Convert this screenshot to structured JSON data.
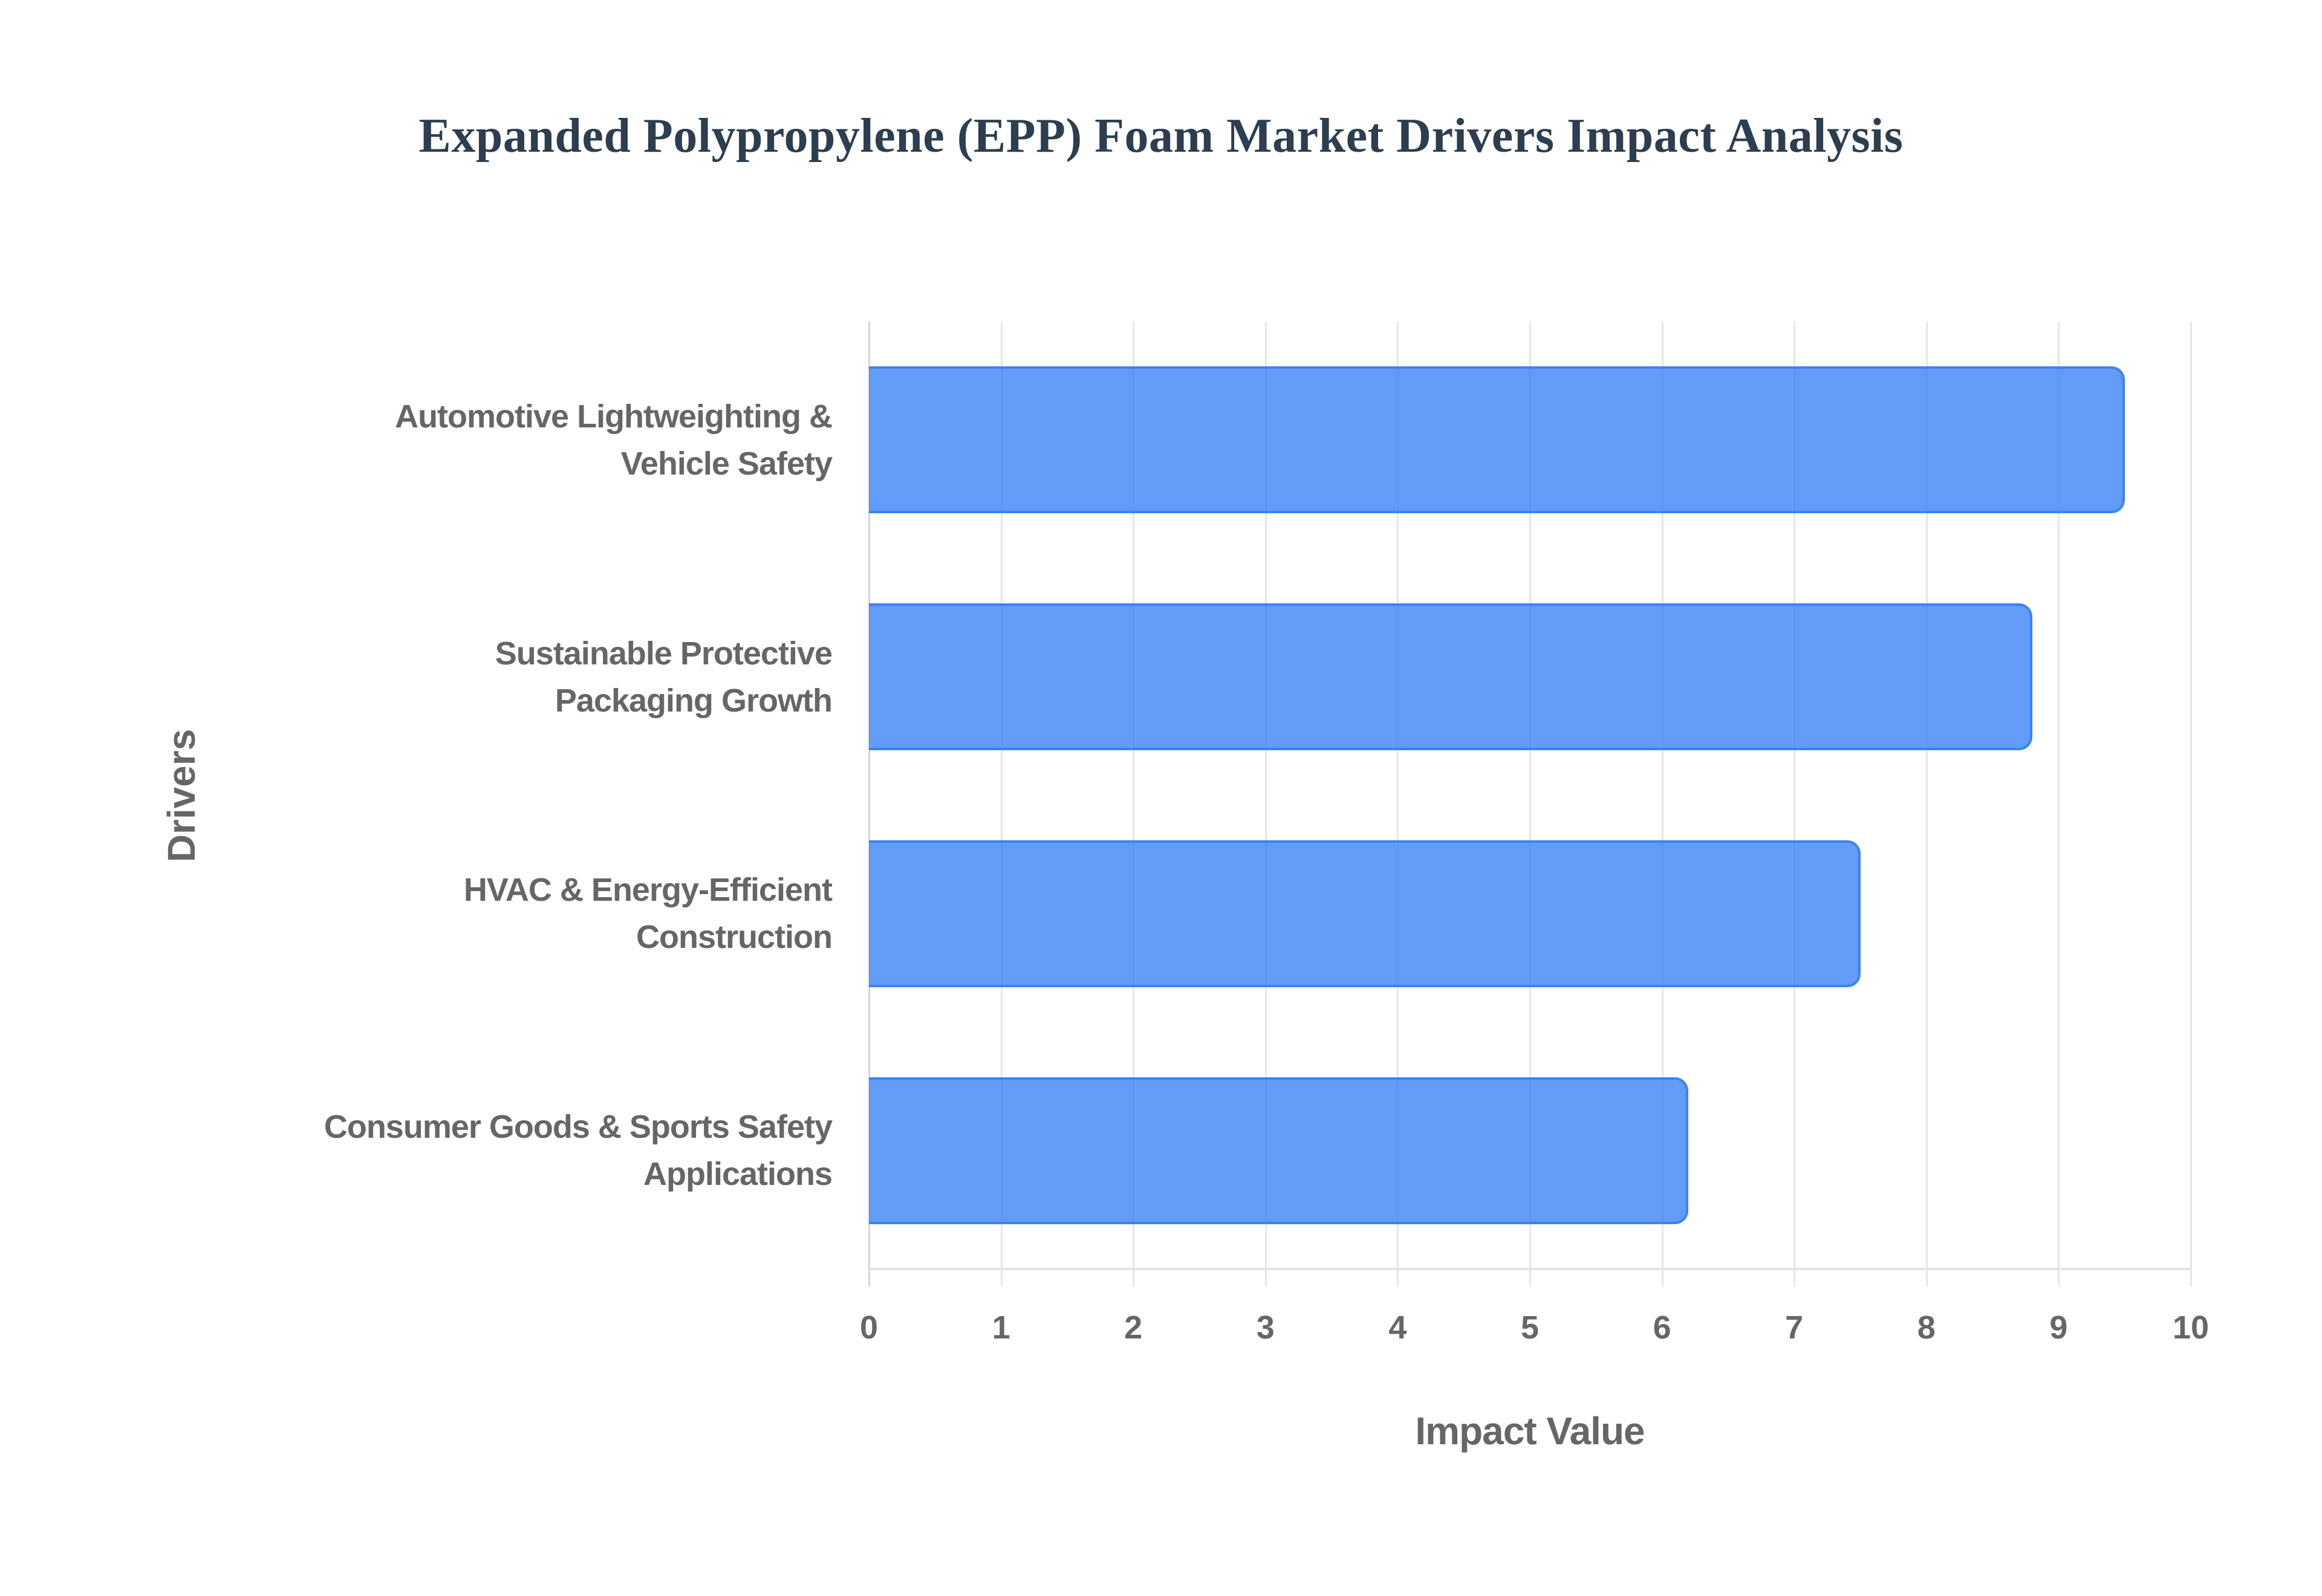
{
  "title": "Expanded Polypropylene (EPP) Foam Market Drivers Impact Analysis",
  "colors": {
    "bar_fill": "rgba(59,130,246,0.8)",
    "bar_border": "#3b82f6",
    "title": "#2c3e50",
    "axis_text": "#666666",
    "grid": "#e6e6e6"
  },
  "axes": {
    "x_title": "Impact Value",
    "y_title": "Drivers",
    "x_ticks": [
      "0",
      "1",
      "2",
      "3",
      "4",
      "5",
      "6",
      "7",
      "8",
      "9",
      "10"
    ]
  },
  "categories": [
    {
      "lines": [
        "Automotive Lightweighting &",
        "Vehicle Safety"
      ],
      "value": 9.5
    },
    {
      "lines": [
        "Sustainable Protective",
        "Packaging Growth"
      ],
      "value": 8.8
    },
    {
      "lines": [
        "HVAC & Energy-Efficient",
        "Construction"
      ],
      "value": 7.5
    },
    {
      "lines": [
        "Consumer Goods & Sports Safety",
        "Applications"
      ],
      "value": 6.2
    }
  ],
  "chart_data": {
    "type": "bar",
    "orientation": "horizontal",
    "title": "Expanded Polypropylene (EPP) Foam Market Drivers Impact Analysis",
    "categories": [
      "Automotive Lightweighting & Vehicle Safety",
      "Sustainable Protective Packaging Growth",
      "HVAC & Energy-Efficient Construction",
      "Consumer Goods & Sports Safety Applications"
    ],
    "values": [
      9.5,
      8.8,
      7.5,
      6.2
    ],
    "xlabel": "Impact Value",
    "ylabel": "Drivers",
    "xlim": [
      0,
      10
    ],
    "x_ticks": [
      0,
      1,
      2,
      3,
      4,
      5,
      6,
      7,
      8,
      9,
      10
    ],
    "grid": true,
    "legend": "none"
  }
}
